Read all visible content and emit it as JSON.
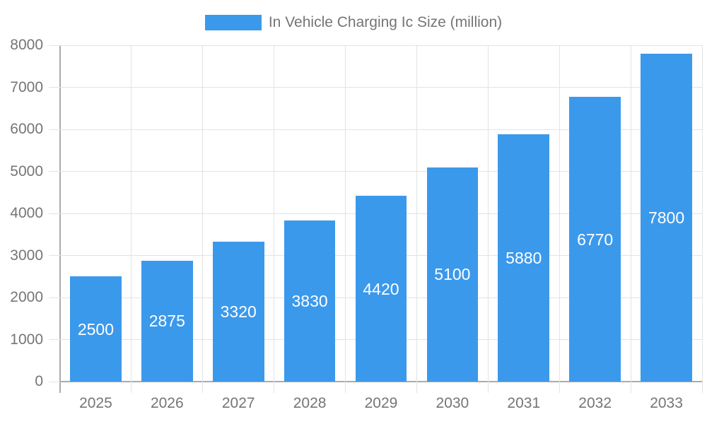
{
  "legend": {
    "label": "In Vehicle Charging Ic Size (million)"
  },
  "chart_data": {
    "type": "bar",
    "title": "In Vehicle Charging Ic Size (million)",
    "categories": [
      "2025",
      "2026",
      "2027",
      "2028",
      "2029",
      "2030",
      "2031",
      "2032",
      "2033"
    ],
    "values": [
      2500,
      2875,
      3320,
      3830,
      4420,
      5100,
      5880,
      6770,
      7800
    ],
    "series": [
      {
        "name": "In Vehicle Charging Ic Size (million)",
        "values": [
          2500,
          2875,
          3320,
          3830,
          4420,
          5100,
          5880,
          6770,
          7800
        ]
      }
    ],
    "xlabel": "",
    "ylabel": "",
    "ylim": [
      0,
      8000
    ],
    "ytick_step": 1000,
    "yticks": [
      0,
      1000,
      2000,
      3000,
      4000,
      5000,
      6000,
      7000,
      8000
    ],
    "legend_position": "top",
    "grid": true,
    "value_labels": "inside-center",
    "colors": {
      "bar": "#3b99ec",
      "grid": "#e3e3e3",
      "axis": "#ababab",
      "tick_text": "#757575",
      "value_text": "#ffffff"
    }
  }
}
